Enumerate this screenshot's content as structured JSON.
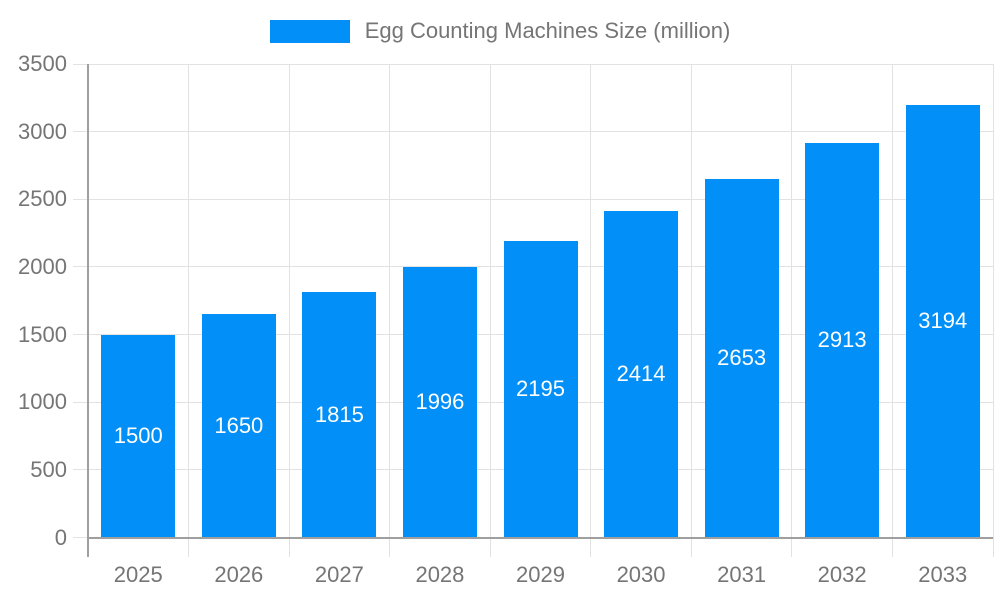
{
  "chart_data": {
    "type": "bar",
    "title": "Egg Counting Machines Size (million)",
    "legend_entries": [
      "Egg Counting Machines Size (million)"
    ],
    "legend_position": "top-center",
    "categories": [
      "2025",
      "2026",
      "2027",
      "2028",
      "2029",
      "2030",
      "2031",
      "2032",
      "2033"
    ],
    "series": [
      {
        "name": "Egg Counting Machines Size (million)",
        "values": [
          1500,
          1650,
          1815,
          1996,
          2195,
          2414,
          2653,
          2913,
          3194
        ]
      }
    ],
    "data_labels_shown": true,
    "xlabel": "",
    "ylabel": "",
    "ylim": [
      0,
      3500
    ],
    "ytick_step": 500,
    "yticks": [
      0,
      500,
      1000,
      1500,
      2000,
      2500,
      3000,
      3500
    ],
    "grid": true,
    "colors": {
      "bar": "#028ff7",
      "bar_label_text": "#ffffff",
      "gridline": "#e2e2e2",
      "axis_line": "#9f9f9f",
      "tick_text": "#757575",
      "legend_text": "#757575",
      "background": "#ffffff"
    }
  }
}
